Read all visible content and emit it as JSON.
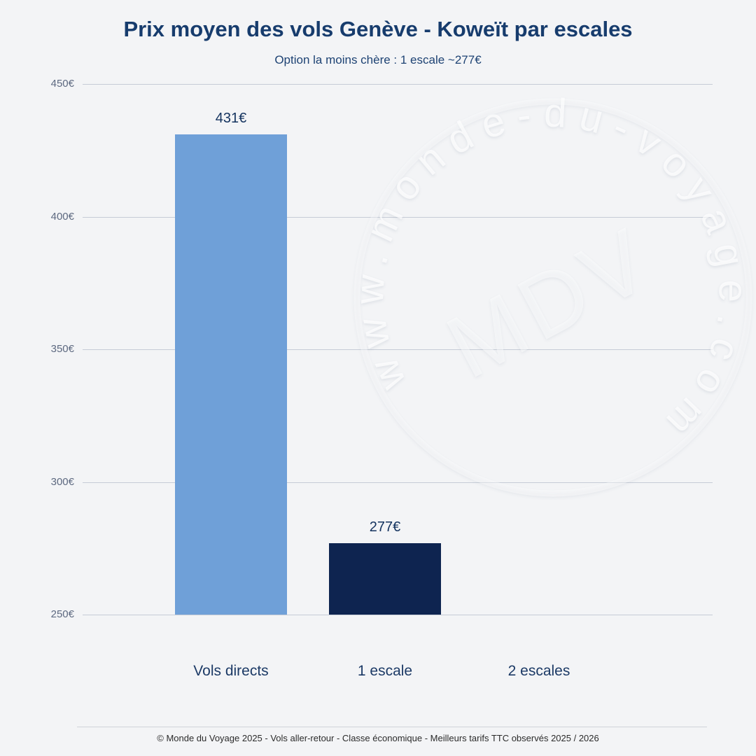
{
  "header": {
    "title": "Prix moyen des vols Genève - Koweït par escales",
    "subtitle": "Option la moins chère : 1 escale ~277€"
  },
  "chart_data": {
    "type": "bar",
    "title": "Prix moyen des vols Genève - Koweït par escales",
    "xlabel": "",
    "ylabel": "",
    "categories": [
      "Vols directs",
      "1 escale",
      "2 escales"
    ],
    "values": [
      431,
      277,
      null
    ],
    "value_labels": [
      "431€",
      "277€",
      ""
    ],
    "bar_colors": [
      "#6fa0d8",
      "#0e2450",
      "transparent"
    ],
    "ylim": [
      250,
      450
    ],
    "yticks": [
      450,
      400,
      350,
      300,
      250
    ],
    "ytick_labels": [
      "450€",
      "400€",
      "350€",
      "300€",
      "250€"
    ],
    "grid": true,
    "legend": "none"
  },
  "watermark": {
    "circle_text": "www.monde-du-voyage.com",
    "center_text": "MDV"
  },
  "footer": {
    "text": "© Monde du Voyage 2025 - Vols aller-retour - Classe économique - Meilleurs tarifs TTC observés 2025 / 2026"
  },
  "colors": {
    "background": "#f3f4f6",
    "accent_navy": "#173c6d",
    "bar_direct_blue": "#6fa0d8",
    "bar_one_stop_navy": "#0e2450",
    "gridline": "#c6ccd6"
  }
}
